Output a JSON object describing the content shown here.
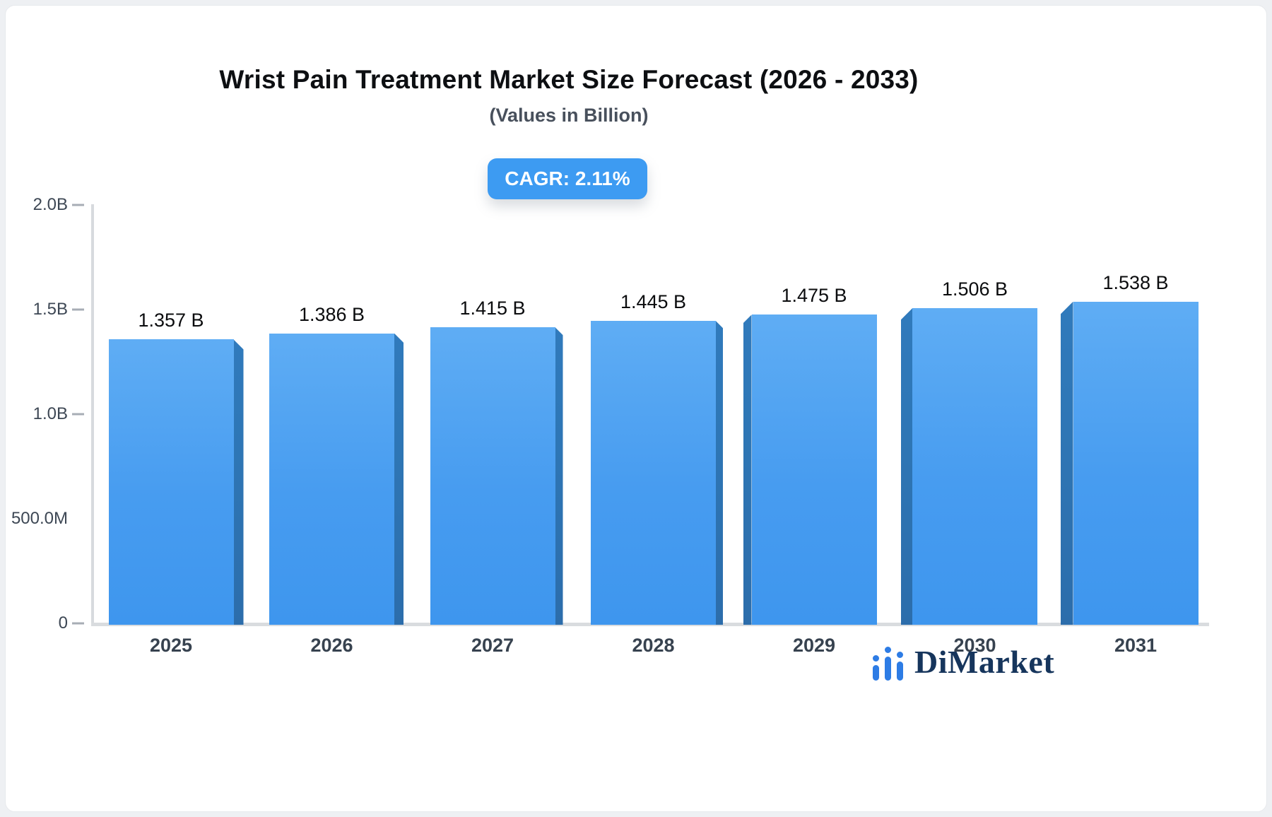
{
  "title": "Wrist Pain Treatment Market Size Forecast (2026 - 2033)",
  "subtitle": "(Values in Billion)",
  "badge": {
    "label": "CAGR: 2.11%",
    "bg_color": "#3d9bf2",
    "text_color": "#ffffff"
  },
  "chart_data": {
    "type": "bar",
    "title": "Wrist Pain Treatment Market Size Forecast (2026 - 2033)",
    "subtitle": "(Values in Billion)",
    "categories": [
      "2025",
      "2026",
      "2027",
      "2028",
      "2029",
      "2030",
      "2031"
    ],
    "values": [
      1.357,
      1.386,
      1.415,
      1.445,
      1.475,
      1.506,
      1.538
    ],
    "value_labels": [
      "1.357 B",
      "1.386 B",
      "1.415 B",
      "1.445 B",
      "1.475 B",
      "1.506 B",
      "1.538 B"
    ],
    "unit": "Billion",
    "xlabel": "",
    "ylabel": "",
    "ylim": [
      0,
      2.0
    ],
    "grid": false,
    "legend": false,
    "y_ticks": [
      {
        "label": "2.0B",
        "value": 2.0,
        "has_dash": true
      },
      {
        "label": "1.5B",
        "value": 1.5,
        "has_dash": true
      },
      {
        "label": "1.0B",
        "value": 1.0,
        "has_dash": true
      },
      {
        "label": "500.0M",
        "value": 0.5,
        "has_dash": false
      },
      {
        "label": "0",
        "value": 0,
        "has_dash": true
      }
    ],
    "bar_face_color_top": "#5fadf4",
    "bar_face_color_bottom": "#3e96ee",
    "bar_side_color": "#2e76b5",
    "axis_color": "#d7dade",
    "tick_color": "#a7adb5"
  },
  "logo": {
    "text": "DiMarket",
    "icon": "bar-chart-dots",
    "icon_color": "#2d7ce5",
    "text_color": "#16355c"
  }
}
